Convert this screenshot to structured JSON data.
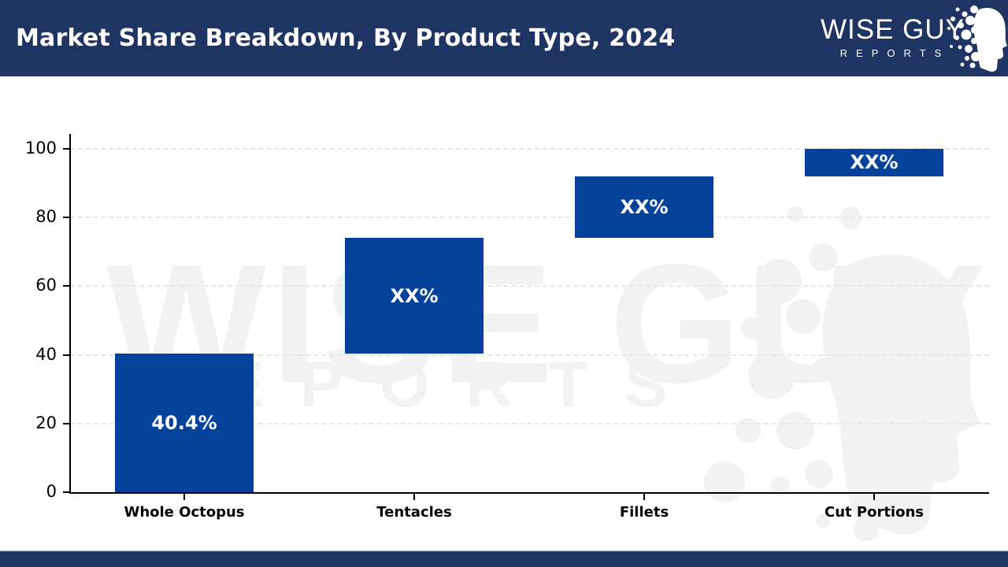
{
  "header": {
    "title": "Market Share Breakdown, By Product Type, 2024",
    "logo": {
      "line1": "WISE GUY",
      "line2": "REPORTS"
    }
  },
  "watermark": {
    "line1": "WISE GUY",
    "line2": "REPORTS"
  },
  "colors": {
    "header_navy": "#1e3462",
    "bar_blue": "#05429c",
    "grid_gray": "#e7e7e7",
    "axis_black": "#000000",
    "watermark_gray": "#f2f2f2",
    "footer_navy": "#1e3462"
  },
  "chart_data": {
    "type": "bar",
    "subtype": "waterfall",
    "title": "Market Share Breakdown, By Product Type, 2024",
    "categories": [
      "Whole Octopus",
      "Tentacles",
      "Fillets",
      "Cut Portions"
    ],
    "segments": [
      {
        "category": "Whole Octopus",
        "start": 0,
        "end": 40.4,
        "label": "40.4%"
      },
      {
        "category": "Tentacles",
        "start": 40.4,
        "end": 74,
        "label": "XX%"
      },
      {
        "category": "Fillets",
        "start": 74,
        "end": 92,
        "label": "XX%"
      },
      {
        "category": "Cut Portions",
        "start": 92,
        "end": 100,
        "label": "XX%"
      }
    ],
    "yticks": [
      0,
      20,
      40,
      60,
      80,
      100
    ],
    "ylim": [
      0,
      104
    ],
    "xlabel": "",
    "ylabel": "",
    "grid": "horizontal-dashed",
    "legend": false,
    "bar_color": "#05429c",
    "value_label_color": "#ffffff"
  }
}
